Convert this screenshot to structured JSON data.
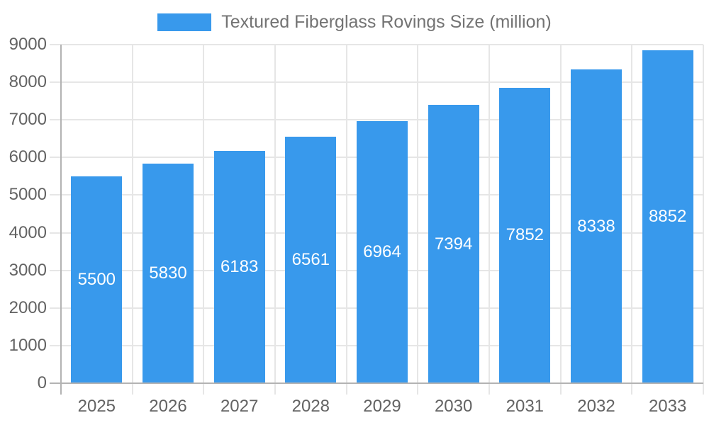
{
  "chart_data": {
    "type": "bar",
    "title": "Textured Fiberglass Rovings Size (million)",
    "legend": {
      "label": "Textured Fiberglass Rovings Size (million)",
      "position": "top-center"
    },
    "categories": [
      "2025",
      "2026",
      "2027",
      "2028",
      "2029",
      "2030",
      "2031",
      "2032",
      "2033"
    ],
    "series": [
      {
        "name": "Textured Fiberglass Rovings Size (million)",
        "values": [
          5500,
          5830,
          6183,
          6561,
          6964,
          7394,
          7852,
          8338,
          8852
        ]
      }
    ],
    "xlabel": "",
    "ylabel": "",
    "ylim": [
      0,
      9000
    ],
    "ytick_step": 1000,
    "yticks": [
      0,
      1000,
      2000,
      3000,
      4000,
      5000,
      6000,
      7000,
      8000,
      9000
    ],
    "grid": true,
    "bar_labels_inside": true,
    "colors": {
      "bar": "#3899ec",
      "bar_label_text": "#ffffff",
      "axis_line": "#b3b3b3",
      "gridline": "#e6e6e6",
      "tick_text": "#636363",
      "legend_text": "#737373"
    }
  }
}
